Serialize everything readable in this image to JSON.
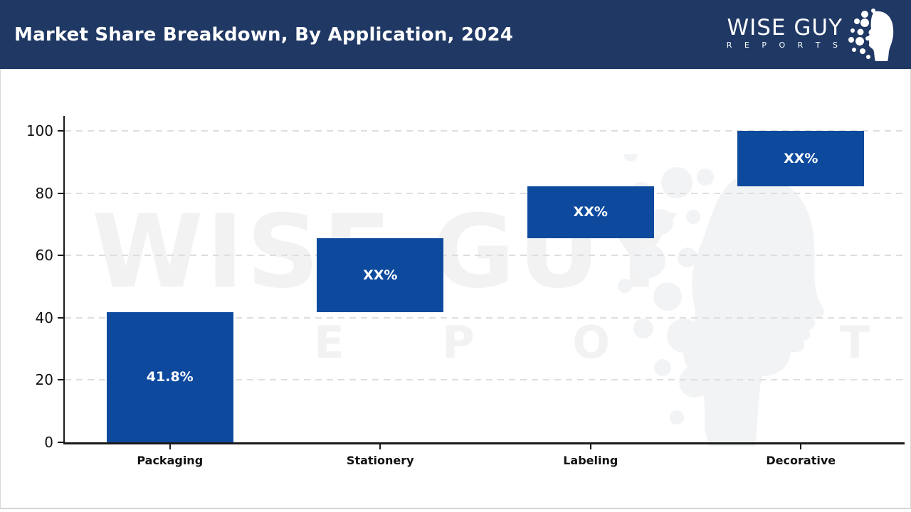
{
  "header": {
    "title": "Market Share Breakdown, By Application, 2024",
    "logo_line1": "WISE GUY",
    "logo_line2": "R E P O R T S",
    "bg_color": "#1f3864"
  },
  "watermark": {
    "line1": "WISE GUY",
    "line2": "R E P O R T S"
  },
  "chart_data": {
    "type": "bar",
    "subtype": "waterfall-floating-bars",
    "title": "Market Share Breakdown, By Application, 2024",
    "xlabel": "",
    "ylabel": "",
    "categories": [
      "Packaging",
      "Stationery",
      "Labeling",
      "Decorative"
    ],
    "segments": [
      {
        "category": "Packaging",
        "start": 0,
        "end": 41.8,
        "value": 41.8,
        "label": "41.8%"
      },
      {
        "category": "Stationery",
        "start": 41.8,
        "end": 65.6,
        "value": 23.8,
        "label": "XX%"
      },
      {
        "category": "Labeling",
        "start": 65.6,
        "end": 82.3,
        "value": 16.7,
        "label": "XX%"
      },
      {
        "category": "Decorative",
        "start": 82.3,
        "end": 100,
        "value": 17.7,
        "label": "XX%"
      }
    ],
    "yticks": [
      0,
      20,
      40,
      60,
      80,
      100
    ],
    "ylim": [
      0,
      105.5
    ],
    "grid": "horizontal-dashed",
    "legend": "none",
    "bar_color": "#0d4a9e",
    "bar_label_color": "#ffffff",
    "grid_color": "#dedede",
    "axis_color": "#1a1a1a"
  }
}
